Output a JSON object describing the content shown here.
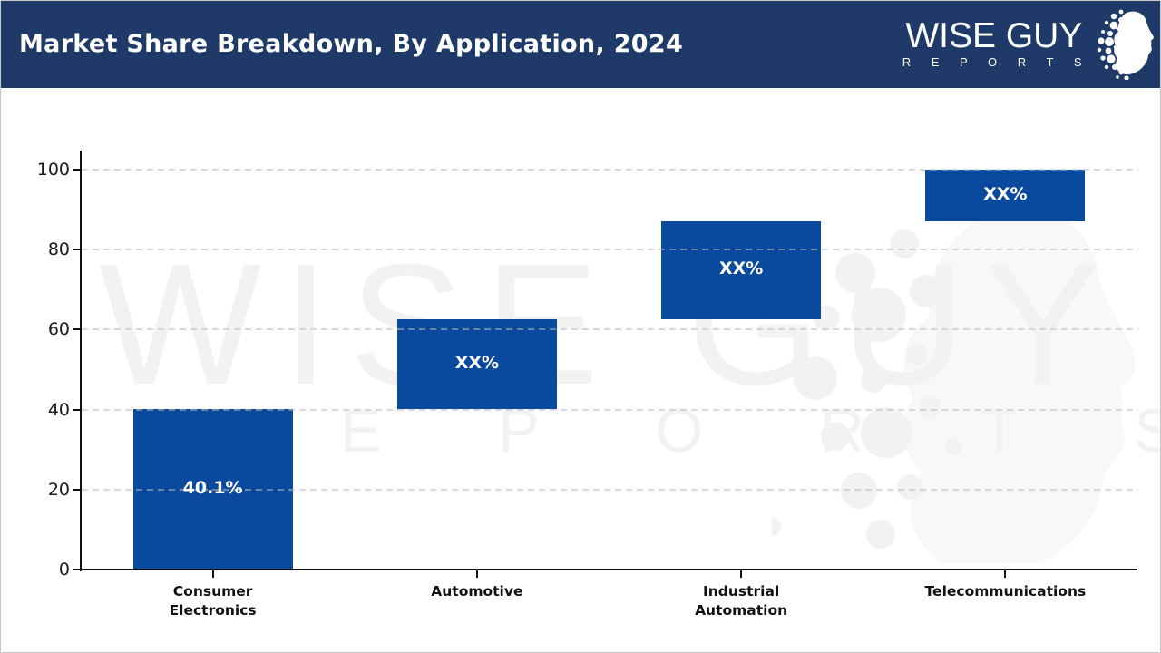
{
  "header": {
    "title": "Market Share Breakdown, By Application, 2024",
    "logo": {
      "line1": "WISE GUY",
      "line2": "R E P O R T S"
    }
  },
  "watermark": {
    "line1": "WISE GUY",
    "line2": "R E P O R T S"
  },
  "colors": {
    "header_bg": "#1f3a68",
    "bar": "#0a4a9e",
    "grid": "#dcdcdc",
    "axis": "#111111",
    "bar_label_text": "#ffffff",
    "watermark": "#f2f2f4"
  },
  "chart_data": {
    "type": "bar",
    "subtype": "waterfall",
    "title": "Market Share Breakdown, By Application, 2024",
    "categories": [
      {
        "lines": [
          "Consumer",
          "Electronics"
        ]
      },
      {
        "lines": [
          "Automotive"
        ]
      },
      {
        "lines": [
          "Industrial",
          "Automation"
        ]
      },
      {
        "lines": [
          "Telecommunications"
        ]
      }
    ],
    "segments": [
      {
        "start": 0,
        "end": 40.1,
        "label": "40.1%"
      },
      {
        "start": 40.1,
        "end": 62.5,
        "label": "XX%"
      },
      {
        "start": 62.5,
        "end": 87,
        "label": "XX%"
      },
      {
        "start": 87,
        "end": 100,
        "label": "XX%"
      }
    ],
    "yticks": [
      0,
      20,
      40,
      60,
      80,
      100
    ],
    "ylim": [
      0,
      105
    ],
    "xlabel": "",
    "ylabel": "",
    "grid": "horizontal-dashed",
    "legend": "none"
  }
}
